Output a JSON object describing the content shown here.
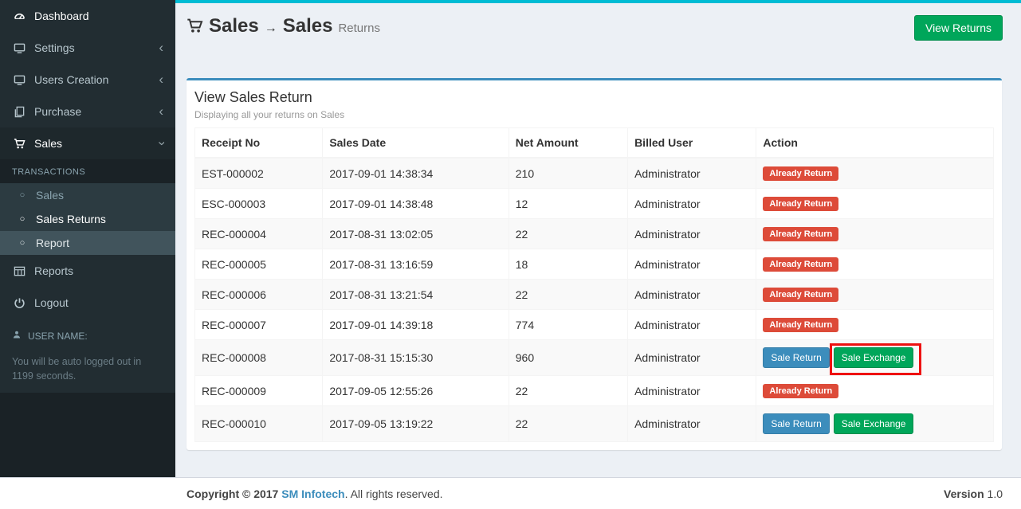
{
  "icons": {
    "chevron_left": "‹",
    "chevron_down": "‹",
    "circle": "○",
    "arrow_right": "→"
  },
  "sidebar": {
    "items": [
      {
        "label": "Dashboard"
      },
      {
        "label": "Settings"
      },
      {
        "label": "Users Creation"
      },
      {
        "label": "Purchase"
      },
      {
        "label": "Sales"
      }
    ],
    "section": "TRANSACTIONS",
    "subitems": [
      {
        "label": "Sales"
      },
      {
        "label": "Sales Returns"
      },
      {
        "label": "Report"
      }
    ],
    "reports_label": "Reports",
    "logout_label": "Logout",
    "user_label": "USER NAME:",
    "auto_logout_note": "You will be auto logged out in 1199 seconds."
  },
  "header": {
    "title": "Sales",
    "breadcrumb_title": "Sales",
    "breadcrumb_sub": "Returns",
    "view_returns": "View Returns"
  },
  "card": {
    "title": "View Sales Return",
    "subtitle": "Displaying all your returns on Sales",
    "table": {
      "columns": [
        "Receipt No",
        "Sales Date",
        "Net Amount",
        "Billed User",
        "Action"
      ],
      "rows": [
        {
          "receipt": "EST-000002",
          "date": "2017-09-01 14:38:34",
          "amount": "210",
          "user": "Administrator",
          "actions": [
            {
              "label": "Already Return",
              "type": "danger",
              "name": "already-return-label"
            }
          ]
        },
        {
          "receipt": "ESC-000003",
          "date": "2017-09-01 14:38:48",
          "amount": "12",
          "user": "Administrator",
          "actions": [
            {
              "label": "Already Return",
              "type": "danger",
              "name": "already-return-label"
            }
          ]
        },
        {
          "receipt": "REC-000004",
          "date": "2017-08-31 13:02:05",
          "amount": "22",
          "user": "Administrator",
          "actions": [
            {
              "label": "Already Return",
              "type": "danger",
              "name": "already-return-label"
            }
          ]
        },
        {
          "receipt": "REC-000005",
          "date": "2017-08-31 13:16:59",
          "amount": "18",
          "user": "Administrator",
          "actions": [
            {
              "label": "Already Return",
              "type": "danger",
              "name": "already-return-label"
            }
          ]
        },
        {
          "receipt": "REC-000006",
          "date": "2017-08-31 13:21:54",
          "amount": "22",
          "user": "Administrator",
          "actions": [
            {
              "label": "Already Return",
              "type": "danger",
              "name": "already-return-label"
            }
          ]
        },
        {
          "receipt": "REC-000007",
          "date": "2017-09-01 14:39:18",
          "amount": "774",
          "user": "Administrator",
          "actions": [
            {
              "label": "Already Return",
              "type": "danger",
              "name": "already-return-label"
            }
          ]
        },
        {
          "receipt": "REC-000008",
          "date": "2017-08-31 15:15:30",
          "amount": "960",
          "user": "Administrator",
          "actions": [
            {
              "label": "Sale Return",
              "type": "primary",
              "name": "sale-return-button"
            },
            {
              "label": "Sale Exchange",
              "type": "success",
              "name": "sale-exchange-button",
              "annotated": true
            }
          ]
        },
        {
          "receipt": "REC-000009",
          "date": "2017-09-05 12:55:26",
          "amount": "22",
          "user": "Administrator",
          "actions": [
            {
              "label": "Already Return",
              "type": "danger",
              "name": "already-return-label"
            }
          ]
        },
        {
          "receipt": "REC-000010",
          "date": "2017-09-05 13:19:22",
          "amount": "22",
          "user": "Administrator",
          "actions": [
            {
              "label": "Sale Return",
              "type": "primary",
              "name": "sale-return-button"
            },
            {
              "label": "Sale Exchange",
              "type": "success",
              "name": "sale-exchange-button"
            }
          ]
        }
      ]
    }
  },
  "footer": {
    "copyright_prefix": "Copyright © 2017",
    "company": "SM Infotech",
    "copyright_suffix": ". All rights reserved.",
    "version_label": "Version",
    "version_value": "1.0"
  },
  "colors": {
    "accent_blue": "#3c8dbc",
    "success_green": "#00a65a",
    "danger_red": "#dd4b39",
    "top_strip_teal": "#00bcd4",
    "sidebar_bg": "#222d32",
    "annotation_red": "#ee1111"
  }
}
